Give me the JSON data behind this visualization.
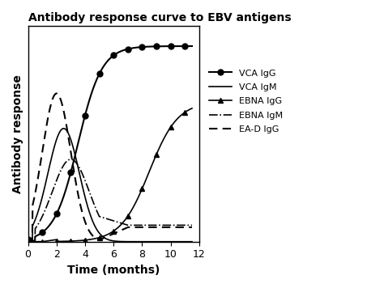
{
  "title": "Antibody response curve to EBV antigens",
  "xlabel": "Time (months)",
  "ylabel": "Antibody response",
  "xlim": [
    0,
    12
  ],
  "ylim": [
    0,
    1.05
  ],
  "xticks": [
    0,
    2,
    4,
    6,
    8,
    10,
    12
  ],
  "legend_entries": [
    "VCA IgG",
    "VCA IgM",
    "EBNA IgG",
    "EBNA IgM",
    "EA-D IgG"
  ],
  "background_color": "#ffffff",
  "line_color": "#000000"
}
